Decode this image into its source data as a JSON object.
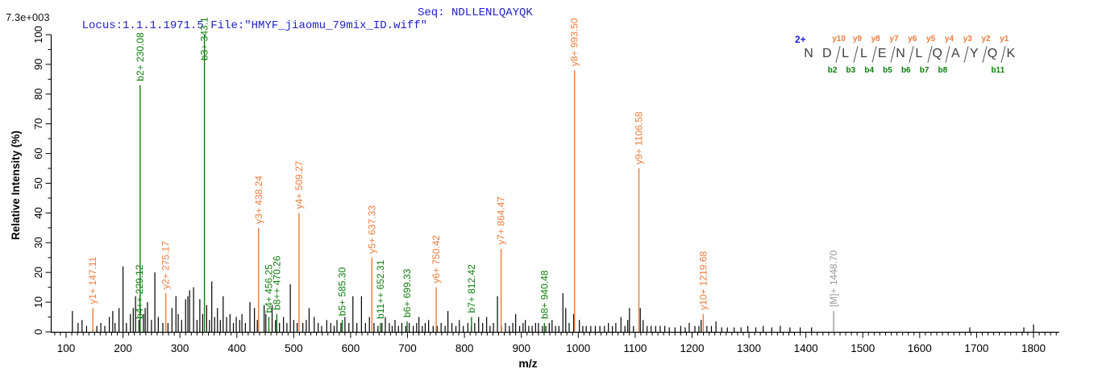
{
  "header": {
    "max_intensity": "7.3e+003",
    "locus_file": "Locus:1.1.1.1971.5 File:\"HMYF_jiaomu_79mix_ID.wiff\"",
    "seq_label": "Seq: NDLLENLQAYQK"
  },
  "peptide": {
    "charge": "2+",
    "residues": [
      "N",
      "D",
      "L",
      "L",
      "E",
      "N",
      "L",
      "Q",
      "A",
      "Y",
      "Q",
      "K"
    ],
    "cleavages": [
      {
        "after": 2,
        "b": "b2",
        "y": "y10"
      },
      {
        "after": 3,
        "b": "b3",
        "y": "y9"
      },
      {
        "after": 4,
        "b": "b4",
        "y": "y8"
      },
      {
        "after": 5,
        "b": "b5",
        "y": "y7"
      },
      {
        "after": 6,
        "b": "b6",
        "y": "y6"
      },
      {
        "after": 7,
        "b": "b7",
        "y": "y5"
      },
      {
        "after": 8,
        "b": "b8",
        "y": "y4"
      },
      {
        "after": 9,
        "b": "",
        "y": "y3"
      },
      {
        "after": 10,
        "b": "",
        "y": "y2"
      },
      {
        "after": 11,
        "b": "b11",
        "y": "y1"
      }
    ]
  },
  "chart_data": {
    "type": "bar",
    "title": "",
    "xlabel": "m/z",
    "ylabel": "Relative  Intensity (%)",
    "xlim": [
      75,
      1845
    ],
    "ylim": [
      0,
      100
    ],
    "x_tick_labels": [
      100,
      200,
      300,
      400,
      500,
      600,
      700,
      800,
      900,
      1000,
      1100,
      1200,
      1300,
      1400,
      1500,
      1600,
      1700,
      1800
    ],
    "y_tick_labels": [
      0,
      10,
      20,
      30,
      40,
      50,
      60,
      70,
      80,
      90,
      100
    ],
    "grid": false,
    "colors": {
      "y_ion": "#f07b3c",
      "b_ion": "#0a7d0a",
      "precursor": "#9b9b9b",
      "noise": "#000000",
      "header_blue": "#2121c8"
    },
    "annotated_peaks": [
      {
        "ion": "y1+",
        "mz": 147.11,
        "label": "y1+ 147.11",
        "pct": 8,
        "type": "y"
      },
      {
        "ion": "b4++",
        "mz": 229.12,
        "label": "b4++ 229.12",
        "pct": 3,
        "type": "b"
      },
      {
        "ion": "b2+",
        "mz": 230.08,
        "label": "b2+ 230.08",
        "pct": 83,
        "type": "b"
      },
      {
        "ion": "y2+",
        "mz": 275.17,
        "label": "y2+ 275.17",
        "pct": 13,
        "type": "y"
      },
      {
        "ion": "b3+",
        "mz": 343.1,
        "label": "b3+ 343.1",
        "pct": 100,
        "type": "b"
      },
      {
        "ion": "y3+",
        "mz": 438.24,
        "label": "y3+ 438.24",
        "pct": 35,
        "type": "y"
      },
      {
        "ion": "b4+",
        "mz": 456.25,
        "label": "b4+ 456.25",
        "pct": 5,
        "type": "b"
      },
      {
        "ion": "b8++",
        "mz": 470.26,
        "label": "b8++ 470.26",
        "pct": 6,
        "type": "b"
      },
      {
        "ion": "y4+",
        "mz": 509.27,
        "label": "y4+ 509.27",
        "pct": 40,
        "type": "y"
      },
      {
        "ion": "b5+",
        "mz": 585.3,
        "label": "b5+ 585.30",
        "pct": 4,
        "type": "b"
      },
      {
        "ion": "y5+",
        "mz": 637.33,
        "label": "y5+ 637.33",
        "pct": 25,
        "type": "y"
      },
      {
        "ion": "b11++",
        "mz": 652.31,
        "label": "b11++ 652.31",
        "pct": 3,
        "type": "b"
      },
      {
        "ion": "b6+",
        "mz": 699.33,
        "label": "b6+ 699.33",
        "pct": 3.5,
        "type": "b"
      },
      {
        "ion": "y6+",
        "mz": 750.42,
        "label": "y6+ 750.42",
        "pct": 15,
        "type": "y"
      },
      {
        "ion": "b7+",
        "mz": 812.42,
        "label": "b7+ 812.42",
        "pct": 5,
        "type": "b"
      },
      {
        "ion": "y7+",
        "mz": 864.47,
        "label": "y7+ 864.47",
        "pct": 28,
        "type": "y"
      },
      {
        "ion": "b8+",
        "mz": 940.48,
        "label": "b8+ 940.48",
        "pct": 3,
        "type": "b"
      },
      {
        "ion": "y8+",
        "mz": 993.5,
        "label": "y8+ 993.50",
        "pct": 88,
        "type": "y"
      },
      {
        "ion": "y9+",
        "mz": 1106.58,
        "label": "y9+ 1106.58",
        "pct": 55,
        "type": "y"
      },
      {
        "ion": "y10+",
        "mz": 1219.68,
        "label": "y10+ 1219.68",
        "pct": 6,
        "type": "y"
      },
      {
        "ion": "[M]+",
        "mz": 1448.7,
        "label": "[M]+ 1448.70",
        "pct": 7,
        "type": "precursor"
      }
    ],
    "unannotated_peaks": [
      [
        111,
        7
      ],
      [
        121,
        3
      ],
      [
        128,
        4
      ],
      [
        136,
        2
      ],
      [
        154,
        2
      ],
      [
        161,
        3
      ],
      [
        168,
        2
      ],
      [
        176,
        5
      ],
      [
        182,
        7
      ],
      [
        186,
        3
      ],
      [
        193,
        8
      ],
      [
        200,
        22
      ],
      [
        206,
        3
      ],
      [
        213,
        6
      ],
      [
        218,
        8
      ],
      [
        222,
        12
      ],
      [
        228,
        4
      ],
      [
        236,
        6
      ],
      [
        239,
        8
      ],
      [
        243,
        10
      ],
      [
        250,
        4
      ],
      [
        256,
        20
      ],
      [
        262,
        5
      ],
      [
        270,
        3
      ],
      [
        279,
        3
      ],
      [
        286,
        8
      ],
      [
        293,
        12
      ],
      [
        297,
        6
      ],
      [
        303,
        4
      ],
      [
        310,
        11
      ],
      [
        314,
        12
      ],
      [
        317,
        14
      ],
      [
        324,
        15
      ],
      [
        330,
        4
      ],
      [
        335,
        11
      ],
      [
        340,
        6
      ],
      [
        347,
        9
      ],
      [
        352,
        4
      ],
      [
        356,
        17
      ],
      [
        361,
        5
      ],
      [
        366,
        8
      ],
      [
        371,
        4
      ],
      [
        376,
        12
      ],
      [
        382,
        5
      ],
      [
        388,
        6
      ],
      [
        394,
        3
      ],
      [
        399,
        5
      ],
      [
        405,
        4
      ],
      [
        409,
        6
      ],
      [
        415,
        3
      ],
      [
        423,
        10
      ],
      [
        431,
        8
      ],
      [
        436,
        4
      ],
      [
        448,
        9
      ],
      [
        451,
        6
      ],
      [
        462,
        9
      ],
      [
        468,
        4
      ],
      [
        475,
        3
      ],
      [
        482,
        5
      ],
      [
        488,
        3
      ],
      [
        494,
        16
      ],
      [
        500,
        4
      ],
      [
        506,
        3
      ],
      [
        516,
        3
      ],
      [
        522,
        4
      ],
      [
        527,
        8
      ],
      [
        536,
        5
      ],
      [
        543,
        3
      ],
      [
        549,
        2
      ],
      [
        558,
        4
      ],
      [
        565,
        3
      ],
      [
        571,
        2
      ],
      [
        576,
        4
      ],
      [
        583,
        3
      ],
      [
        590,
        5
      ],
      [
        597,
        3
      ],
      [
        604,
        12
      ],
      [
        611,
        3
      ],
      [
        619,
        12
      ],
      [
        626,
        3
      ],
      [
        633,
        5
      ],
      [
        641,
        3
      ],
      [
        648,
        2
      ],
      [
        655,
        3
      ],
      [
        661,
        5
      ],
      [
        668,
        3
      ],
      [
        673,
        2
      ],
      [
        678,
        4
      ],
      [
        684,
        2
      ],
      [
        690,
        3
      ],
      [
        697,
        2
      ],
      [
        703,
        3
      ],
      [
        710,
        2
      ],
      [
        716,
        3
      ],
      [
        720,
        5
      ],
      [
        726,
        2
      ],
      [
        731,
        3
      ],
      [
        737,
        4
      ],
      [
        745,
        2
      ],
      [
        752,
        2
      ],
      [
        759,
        3
      ],
      [
        766,
        2
      ],
      [
        771,
        7
      ],
      [
        778,
        3
      ],
      [
        785,
        2
      ],
      [
        791,
        4
      ],
      [
        798,
        2
      ],
      [
        806,
        3
      ],
      [
        812,
        2
      ],
      [
        818,
        3
      ],
      [
        825,
        5
      ],
      [
        832,
        3
      ],
      [
        839,
        5
      ],
      [
        845,
        2
      ],
      [
        851,
        3
      ],
      [
        858,
        12
      ],
      [
        865,
        2
      ],
      [
        872,
        3
      ],
      [
        879,
        2
      ],
      [
        885,
        3
      ],
      [
        890,
        6
      ],
      [
        897,
        2
      ],
      [
        903,
        3
      ],
      [
        907,
        4
      ],
      [
        913,
        2
      ],
      [
        919,
        2
      ],
      [
        925,
        3
      ],
      [
        930,
        3
      ],
      [
        937,
        2
      ],
      [
        943,
        2
      ],
      [
        949,
        3
      ],
      [
        954,
        4
      ],
      [
        960,
        2
      ],
      [
        966,
        2
      ],
      [
        973,
        13
      ],
      [
        978,
        8
      ],
      [
        984,
        3
      ],
      [
        992,
        6
      ],
      [
        1002,
        4
      ],
      [
        1008,
        2
      ],
      [
        1014,
        2
      ],
      [
        1022,
        2
      ],
      [
        1030,
        2
      ],
      [
        1038,
        2
      ],
      [
        1046,
        2
      ],
      [
        1053,
        3
      ],
      [
        1060,
        2
      ],
      [
        1066,
        3
      ],
      [
        1075,
        5
      ],
      [
        1082,
        2
      ],
      [
        1087,
        4
      ],
      [
        1090,
        8
      ],
      [
        1097,
        2
      ],
      [
        1109,
        8
      ],
      [
        1114,
        4
      ],
      [
        1121,
        2
      ],
      [
        1128,
        2
      ],
      [
        1136,
        2
      ],
      [
        1144,
        2
      ],
      [
        1152,
        2
      ],
      [
        1160,
        1.5
      ],
      [
        1170,
        1.5
      ],
      [
        1180,
        2
      ],
      [
        1188,
        1.5
      ],
      [
        1195,
        3
      ],
      [
        1205,
        2
      ],
      [
        1212,
        2
      ],
      [
        1216,
        4
      ],
      [
        1226,
        2
      ],
      [
        1234,
        2
      ],
      [
        1242,
        3.5
      ],
      [
        1252,
        1.5
      ],
      [
        1262,
        1.5
      ],
      [
        1274,
        1.5
      ],
      [
        1286,
        1.5
      ],
      [
        1298,
        2
      ],
      [
        1312,
        1.5
      ],
      [
        1325,
        2
      ],
      [
        1340,
        1.5
      ],
      [
        1355,
        2
      ],
      [
        1372,
        1.5
      ],
      [
        1390,
        1.5
      ],
      [
        1410,
        1.5
      ],
      [
        1688,
        1.5
      ],
      [
        1783,
        1.5
      ],
      [
        1800,
        2.5
      ]
    ]
  }
}
